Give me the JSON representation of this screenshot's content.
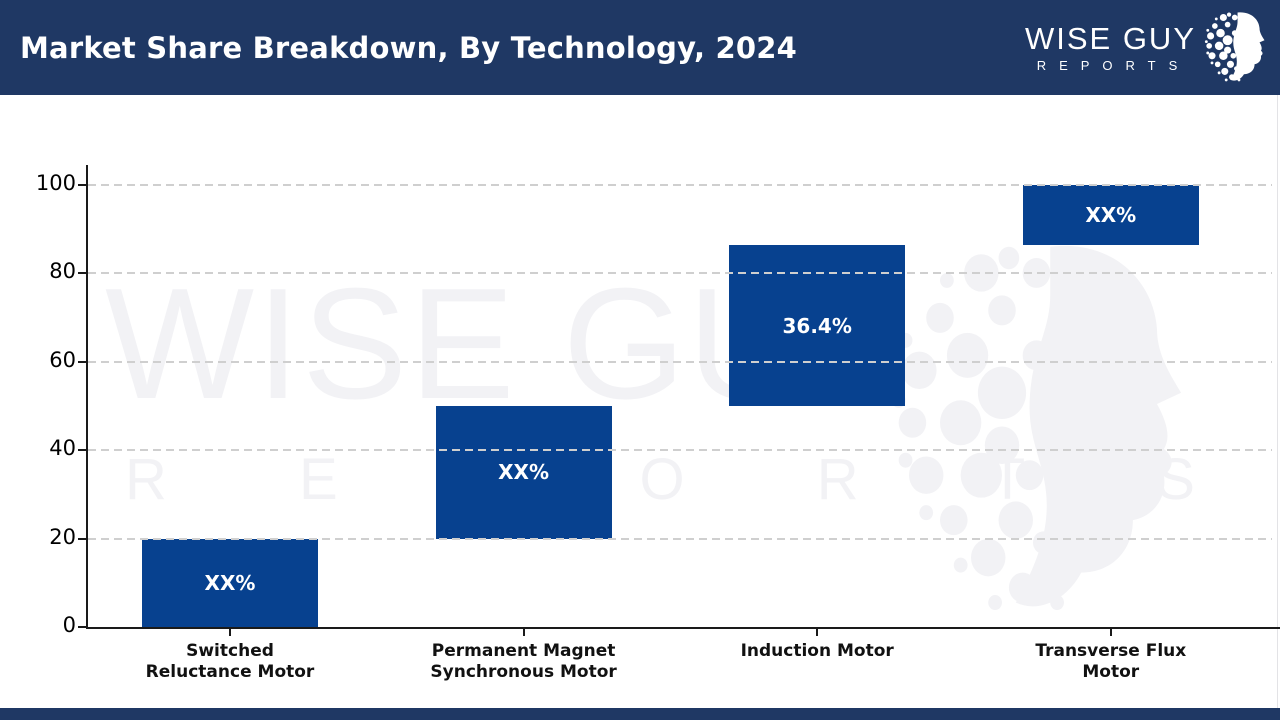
{
  "header": {
    "title": "Market Share Breakdown, By Technology, 2024"
  },
  "brand": {
    "name": "WISE GUY",
    "sub": "REPORTS"
  },
  "watermark": {
    "name": "WISE GUY",
    "sub": "R E P O R T S"
  },
  "colors": {
    "header_bg": "#1f3864",
    "footer_bg": "#1f3864",
    "bar_blue": "#07418f",
    "gridline": "#cfcfcf",
    "axis": "#1a1a1a",
    "value_label": "#ffffff"
  },
  "chart_data": {
    "type": "bar",
    "subtype": "floating-segment-waterfall",
    "title": "Market Share Breakdown, By Technology, 2024",
    "categories": [
      [
        "Switched",
        "Reluctance Motor"
      ],
      [
        "Permanent Magnet",
        "Synchronous Motor"
      ],
      [
        "Induction Motor"
      ],
      [
        "Transverse Flux",
        "Motor"
      ]
    ],
    "bars": [
      {
        "start": 0,
        "end": 20,
        "value_label": "XX%"
      },
      {
        "start": 20,
        "end": 50,
        "value_label": "XX%"
      },
      {
        "start": 50,
        "end": 86.4,
        "value_label": "36.4%"
      },
      {
        "start": 86.4,
        "end": 100,
        "value_label": "XX%"
      }
    ],
    "ylim": [
      0,
      100
    ],
    "yticks": [
      0,
      20,
      40,
      60,
      80,
      100
    ],
    "xlabel": "",
    "ylabel": "",
    "grid": "dashed-horizontal-over-bars",
    "legend": "none",
    "bar_color": "#07418f"
  }
}
